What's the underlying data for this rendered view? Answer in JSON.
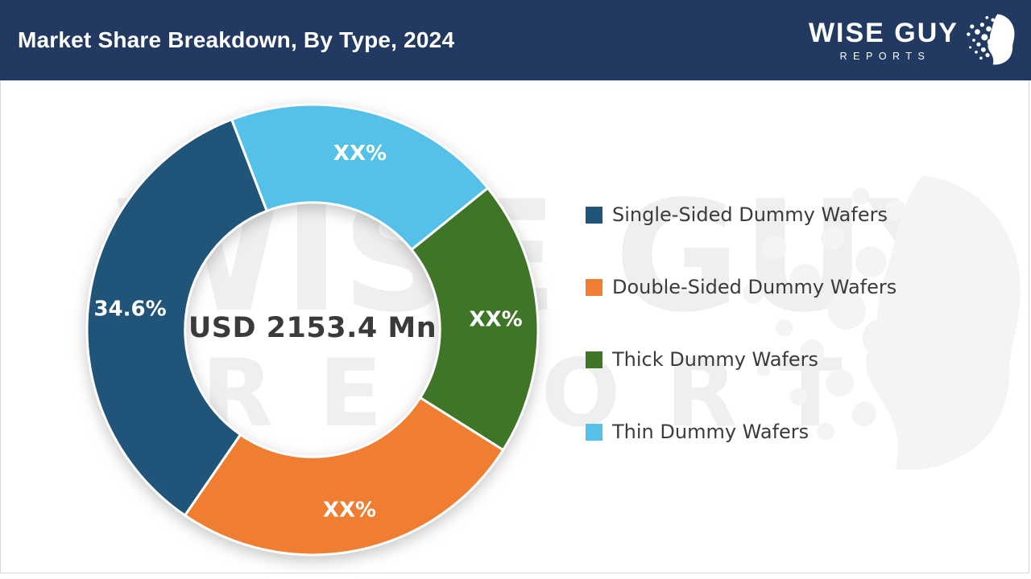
{
  "header": {
    "title": "Market Share Breakdown, By Type, 2024",
    "logo": {
      "name": "WISE GUY",
      "tagline": "REPORTS"
    }
  },
  "watermark": {
    "line1": "WISE GUY",
    "line2": "REPORTS"
  },
  "chart_data": {
    "type": "pie",
    "subtype": "donut",
    "title": "Market Share Breakdown, By Type, 2024",
    "center_label": "USD 2153.4 Mn",
    "legend_position": "right",
    "start_angle_deg": 111,
    "direction": "counterclockwise",
    "inner_radius_ratio": 0.565,
    "segments": [
      {
        "name": "Single-Sided Dummy Wafers",
        "label": "34.6%",
        "sweep_pct": 34.6,
        "color": "#205478"
      },
      {
        "name": "Double-Sided Dummy Wafers",
        "label": "XX%",
        "sweep_pct": 25.6,
        "color": "#EF7E32"
      },
      {
        "name": "Thick Dummy Wafers",
        "label": "XX%",
        "sweep_pct": 19.8,
        "color": "#3F7526"
      },
      {
        "name": "Thin Dummy Wafers",
        "label": "XX%",
        "sweep_pct": 20.0,
        "color": "#55C0E8"
      }
    ]
  },
  "colors": {
    "header_bg": "#223A62",
    "center_text": "#3A3A3A",
    "legend_text": "#3B3B3B",
    "frame_border": "#D9D9D9",
    "watermark": "#EFEFF0"
  }
}
